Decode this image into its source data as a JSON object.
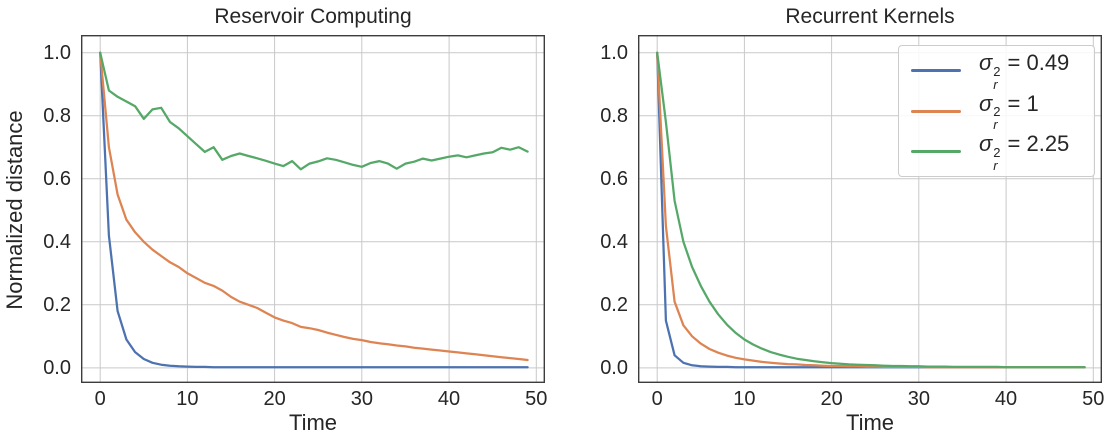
{
  "figure": {
    "background": "#ffffff",
    "text_color": "#262626",
    "grid_color": "#c9c9c9",
    "spine_color": "#3d3d3d"
  },
  "legend": {
    "position": "upper right",
    "entries": [
      {
        "symbol": "σ",
        "sup": "2",
        "sub": "r",
        "rhs": "= 0.49",
        "color": "#4C72B0"
      },
      {
        "symbol": "σ",
        "sup": "2",
        "sub": "r",
        "rhs": "= 1",
        "color": "#DD8452"
      },
      {
        "symbol": "σ",
        "sup": "2",
        "sub": "r",
        "rhs": "= 2.25",
        "color": "#55A868"
      }
    ]
  },
  "chart_data": [
    {
      "type": "line",
      "title": "Reservoir Computing",
      "xlabel": "Time",
      "ylabel": "Normalized distance",
      "grid": true,
      "legend_visible": false,
      "xlim": [
        -2.2,
        51.0
      ],
      "ylim": [
        -0.048,
        1.056
      ],
      "xticks": [
        0,
        10,
        20,
        30,
        40,
        50
      ],
      "yticks": [
        0.0,
        0.2,
        0.4,
        0.6,
        0.8,
        1.0
      ],
      "x": [
        0,
        1,
        2,
        3,
        4,
        5,
        6,
        7,
        8,
        9,
        10,
        11,
        12,
        13,
        14,
        15,
        16,
        17,
        18,
        19,
        20,
        21,
        22,
        23,
        24,
        25,
        26,
        27,
        28,
        29,
        30,
        31,
        32,
        33,
        34,
        35,
        36,
        37,
        38,
        39,
        40,
        41,
        42,
        43,
        44,
        45,
        46,
        47,
        48,
        49
      ],
      "series": [
        {
          "name": "σr² = 0.49",
          "color": "#4C72B0",
          "values": [
            1.0,
            0.42,
            0.18,
            0.09,
            0.05,
            0.028,
            0.016,
            0.01,
            0.007,
            0.005,
            0.004,
            0.003,
            0.003,
            0.002,
            0.002,
            0.002,
            0.002,
            0.002,
            0.002,
            0.002,
            0.002,
            0.002,
            0.002,
            0.002,
            0.002,
            0.002,
            0.002,
            0.002,
            0.002,
            0.002,
            0.002,
            0.002,
            0.002,
            0.002,
            0.002,
            0.002,
            0.002,
            0.002,
            0.002,
            0.002,
            0.002,
            0.002,
            0.002,
            0.002,
            0.002,
            0.002,
            0.002,
            0.002,
            0.002,
            0.002
          ]
        },
        {
          "name": "σr² = 1",
          "color": "#DD8452",
          "values": [
            1.0,
            0.7,
            0.55,
            0.47,
            0.43,
            0.4,
            0.375,
            0.355,
            0.335,
            0.32,
            0.3,
            0.285,
            0.27,
            0.26,
            0.245,
            0.225,
            0.21,
            0.2,
            0.19,
            0.175,
            0.16,
            0.15,
            0.142,
            0.13,
            0.126,
            0.12,
            0.112,
            0.105,
            0.098,
            0.092,
            0.088,
            0.082,
            0.078,
            0.075,
            0.071,
            0.068,
            0.064,
            0.061,
            0.058,
            0.055,
            0.052,
            0.049,
            0.046,
            0.043,
            0.04,
            0.037,
            0.034,
            0.031,
            0.028,
            0.025
          ]
        },
        {
          "name": "σr² = 2.25",
          "color": "#55A868",
          "values": [
            1.0,
            0.88,
            0.86,
            0.845,
            0.83,
            0.79,
            0.82,
            0.825,
            0.78,
            0.76,
            0.735,
            0.71,
            0.685,
            0.7,
            0.66,
            0.672,
            0.68,
            0.672,
            0.665,
            0.657,
            0.648,
            0.64,
            0.656,
            0.63,
            0.648,
            0.655,
            0.665,
            0.66,
            0.652,
            0.644,
            0.638,
            0.65,
            0.656,
            0.648,
            0.632,
            0.648,
            0.654,
            0.664,
            0.658,
            0.664,
            0.67,
            0.674,
            0.668,
            0.674,
            0.68,
            0.684,
            0.698,
            0.692,
            0.7,
            0.686
          ]
        }
      ]
    },
    {
      "type": "line",
      "title": "Recurrent Kernels",
      "xlabel": "Time",
      "ylabel": "",
      "grid": true,
      "legend_visible": true,
      "xlim": [
        -2.2,
        51.0
      ],
      "ylim": [
        -0.048,
        1.056
      ],
      "xticks": [
        0,
        10,
        20,
        30,
        40,
        50
      ],
      "yticks": [
        0.0,
        0.2,
        0.4,
        0.6,
        0.8,
        1.0
      ],
      "x": [
        0,
        1,
        2,
        3,
        4,
        5,
        6,
        7,
        8,
        9,
        10,
        11,
        12,
        13,
        14,
        15,
        16,
        17,
        18,
        19,
        20,
        21,
        22,
        23,
        24,
        25,
        26,
        27,
        28,
        29,
        30,
        31,
        32,
        33,
        34,
        35,
        36,
        37,
        38,
        39,
        40,
        41,
        42,
        43,
        44,
        45,
        46,
        47,
        48,
        49
      ],
      "series": [
        {
          "name": "σr² = 0.49",
          "color": "#4C72B0",
          "values": [
            1.0,
            0.15,
            0.04,
            0.016,
            0.008,
            0.005,
            0.004,
            0.003,
            0.003,
            0.002,
            0.002,
            0.002,
            0.002,
            0.002,
            0.002,
            0.002,
            0.002,
            0.002,
            0.002,
            0.002,
            0.002,
            0.002,
            0.002,
            0.002,
            0.002,
            0.002,
            0.002,
            0.002,
            0.002,
            0.002,
            0.002,
            0.002,
            0.002,
            0.002,
            0.002,
            0.002,
            0.002,
            0.002,
            0.002,
            0.002,
            0.002,
            0.002,
            0.002,
            0.002,
            0.002,
            0.002,
            0.002,
            0.002,
            0.002,
            0.002
          ]
        },
        {
          "name": "σr² = 1",
          "color": "#DD8452",
          "values": [
            1.0,
            0.45,
            0.21,
            0.135,
            0.1,
            0.077,
            0.06,
            0.048,
            0.039,
            0.032,
            0.027,
            0.023,
            0.019,
            0.016,
            0.014,
            0.012,
            0.011,
            0.009,
            0.008,
            0.007,
            0.006,
            0.006,
            0.005,
            0.005,
            0.004,
            0.004,
            0.003,
            0.003,
            0.003,
            0.003,
            0.003,
            0.002,
            0.002,
            0.002,
            0.002,
            0.002,
            0.002,
            0.002,
            0.002,
            0.002,
            0.002,
            0.002,
            0.002,
            0.002,
            0.002,
            0.002,
            0.002,
            0.002,
            0.002,
            0.002
          ]
        },
        {
          "name": "σr² = 2.25",
          "color": "#55A868",
          "values": [
            1.0,
            0.78,
            0.53,
            0.4,
            0.32,
            0.26,
            0.21,
            0.17,
            0.137,
            0.111,
            0.09,
            0.074,
            0.061,
            0.05,
            0.042,
            0.035,
            0.029,
            0.025,
            0.021,
            0.018,
            0.015,
            0.013,
            0.011,
            0.01,
            0.009,
            0.008,
            0.007,
            0.006,
            0.006,
            0.005,
            0.005,
            0.004,
            0.004,
            0.004,
            0.003,
            0.003,
            0.003,
            0.003,
            0.003,
            0.003,
            0.002,
            0.002,
            0.002,
            0.002,
            0.002,
            0.002,
            0.002,
            0.002,
            0.002,
            0.002
          ]
        }
      ]
    }
  ]
}
